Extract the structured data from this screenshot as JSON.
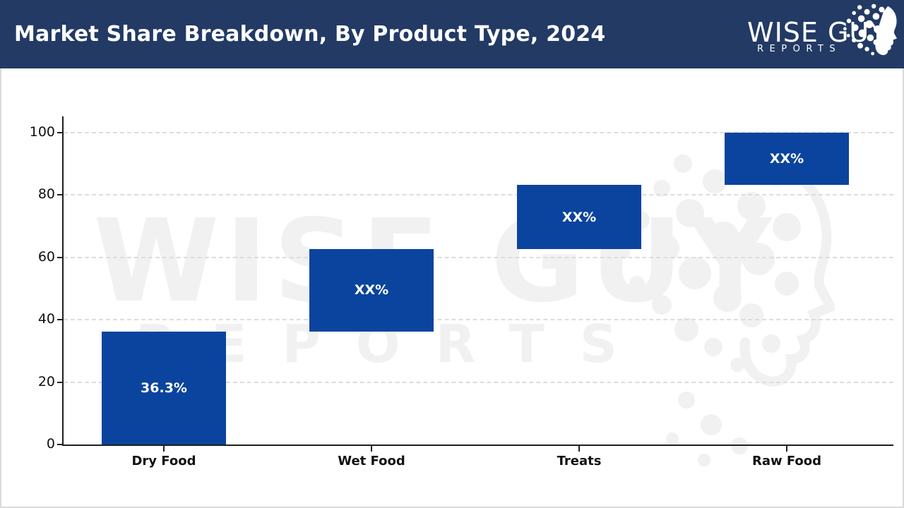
{
  "header": {
    "title": "Market Share Breakdown, By Product Type, 2024",
    "logo": {
      "brand": "WISE GUY",
      "sub": "REPORTS"
    }
  },
  "watermark": {
    "brand": "WISE GUY",
    "sub": "REPORTS"
  },
  "colors": {
    "header_bg": "#223A64",
    "bar": "#0B449E",
    "axis": "#1F1F1F",
    "grid": "#DCDCDC",
    "watermark": "#F1F1F2",
    "bar_label": "#FFFFFF",
    "tick_text": "#111111"
  },
  "chart_data": {
    "type": "waterfall",
    "title": "Market Share Breakdown, By Product Type, 2024",
    "categories": [
      "Dry Food",
      "Wet Food",
      "Treats",
      "Raw Food"
    ],
    "segments": [
      {
        "category": "Dry Food",
        "start": 0,
        "end": 36.3,
        "label": "36.3%"
      },
      {
        "category": "Wet Food",
        "start": 36.3,
        "end": 62.6,
        "label": "XX%"
      },
      {
        "category": "Treats",
        "start": 62.6,
        "end": 83.2,
        "label": "XX%"
      },
      {
        "category": "Raw Food",
        "start": 83.2,
        "end": 100,
        "label": "XX%"
      }
    ],
    "ylim": [
      0,
      100
    ],
    "yticks": [
      0,
      20,
      40,
      60,
      80,
      100
    ],
    "xlabel": "",
    "ylabel": "",
    "grid": "horizontal-dashed",
    "legend": "none"
  }
}
